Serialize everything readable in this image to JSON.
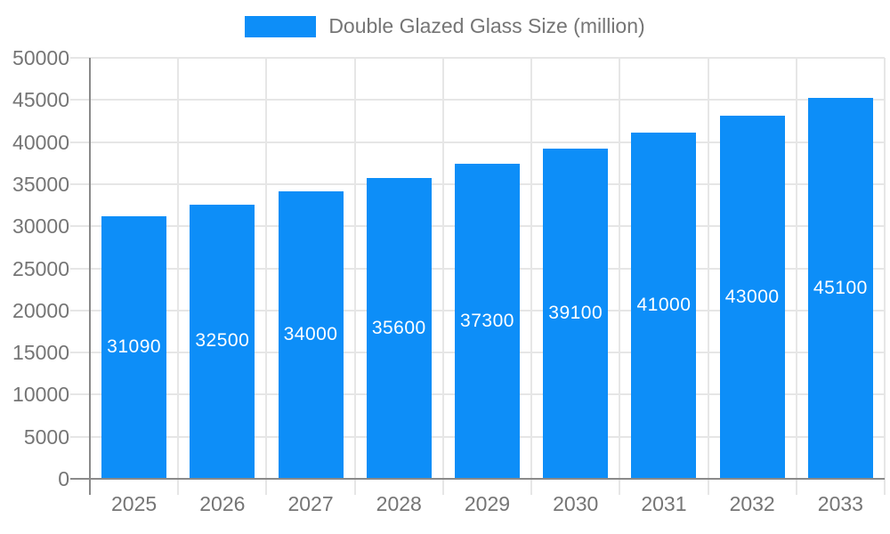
{
  "chart_data": {
    "type": "bar",
    "title": "",
    "legend_label": "Double Glazed Glass Size (million)",
    "legend_position": "top",
    "categories": [
      "2025",
      "2026",
      "2027",
      "2028",
      "2029",
      "2030",
      "2031",
      "2032",
      "2033"
    ],
    "values": [
      31090,
      32500,
      34000,
      35600,
      37300,
      39100,
      41000,
      43000,
      45100
    ],
    "bar_labels": [
      "31090",
      "32500",
      "34000",
      "35600",
      "37300",
      "39100",
      "41000",
      "43000",
      "45100"
    ],
    "xlabel": "",
    "ylabel": "",
    "ylim": [
      0,
      50000
    ],
    "y_tick_step": 5000,
    "y_ticks": [
      "0",
      "5000",
      "10000",
      "15000",
      "20000",
      "25000",
      "30000",
      "35000",
      "40000",
      "45000",
      "50000"
    ],
    "grid": true,
    "colors": {
      "bar": "#0d8ef8",
      "axis": "#8a8a8a",
      "grid": "#e6e6e6",
      "tick_label": "#757575",
      "value_label": "#ffffff",
      "background": "#ffffff"
    }
  }
}
